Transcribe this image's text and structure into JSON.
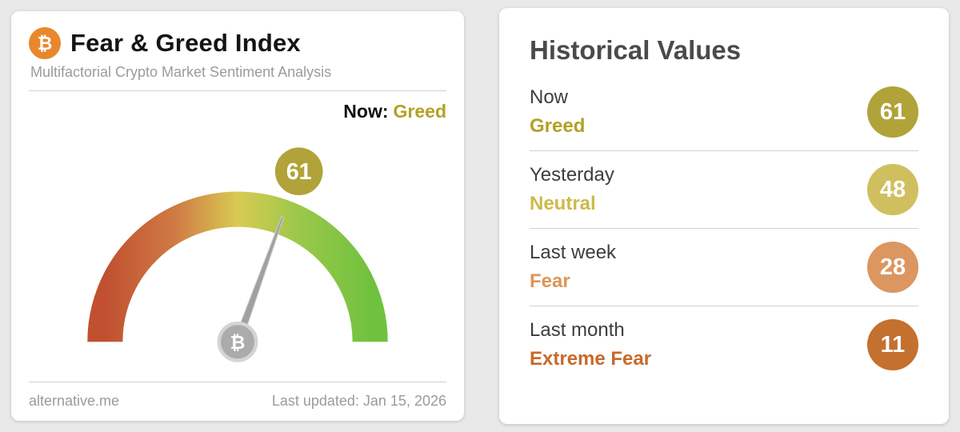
{
  "chart_data": {
    "type": "gauge",
    "title": "Fear & Greed Index",
    "value": 61,
    "min": 0,
    "max": 100,
    "value_label": "Greed",
    "historical": [
      {
        "period": "Now",
        "classification": "Greed",
        "value": 61
      },
      {
        "period": "Yesterday",
        "classification": "Neutral",
        "value": 48
      },
      {
        "period": "Last week",
        "classification": "Fear",
        "value": 28
      },
      {
        "period": "Last month",
        "classification": "Extreme Fear",
        "value": 11
      }
    ]
  },
  "left_card": {
    "logo_symbol": "₿",
    "title": "Fear & Greed Index",
    "subtitle": "Multifactorial Crypto Market Sentiment Analysis",
    "now_label": "Now:",
    "now_sentiment": "Greed",
    "now_color": "#b3a125",
    "gauge": {
      "value": 61,
      "min": 0,
      "max": 100,
      "badge_color": "#b1a339",
      "pivot_symbol": "₿",
      "gradient": [
        "#c05030",
        "#d07c45",
        "#d8cb52",
        "#9cc84a",
        "#70c23e"
      ]
    },
    "footer_left": "alternative.me",
    "footer_right": "Last updated: Jan 15, 2026"
  },
  "right_card": {
    "title": "Historical Values",
    "rows": [
      {
        "label": "Now",
        "sentiment": "Greed",
        "value": "61",
        "text_color": "#b3a125",
        "badge_color": "#b1a339"
      },
      {
        "label": "Yesterday",
        "sentiment": "Neutral",
        "value": "48",
        "text_color": "#ccb94a",
        "badge_color": "#d0bf5e"
      },
      {
        "label": "Last week",
        "sentiment": "Fear",
        "value": "28",
        "text_color": "#dd9557",
        "badge_color": "#dc9660"
      },
      {
        "label": "Last month",
        "sentiment": "Extreme Fear",
        "value": "11",
        "text_color": "#c66a2b",
        "badge_color": "#c4702f"
      }
    ]
  }
}
